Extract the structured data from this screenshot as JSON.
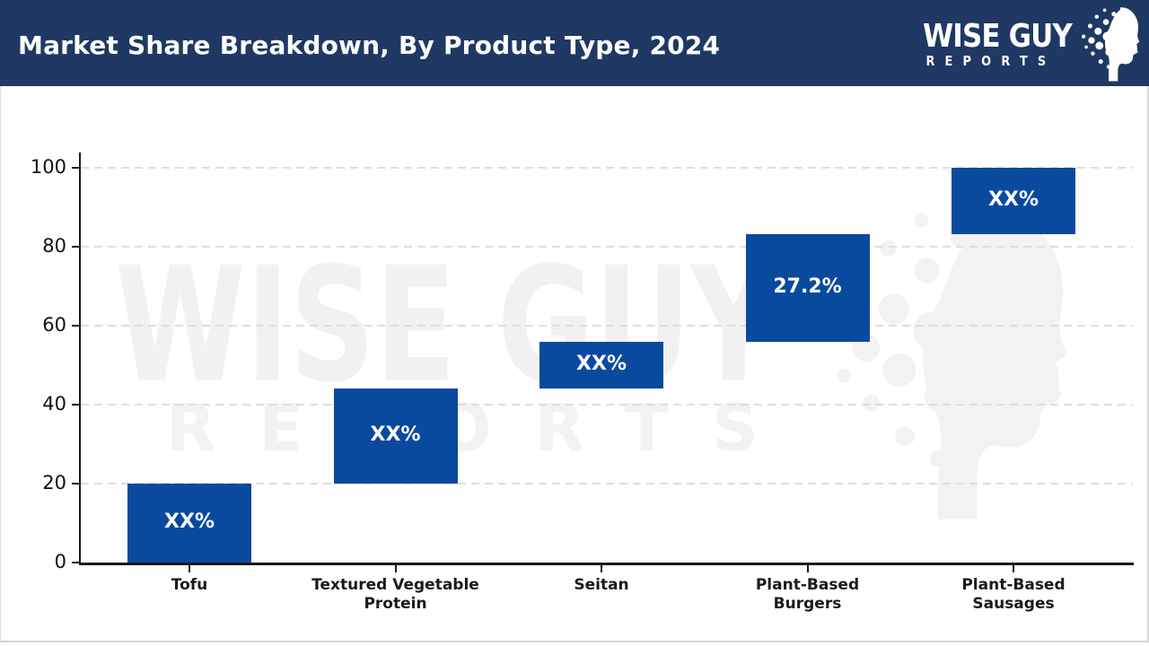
{
  "header": {
    "title": "Market Share Breakdown, By Product Type, 2024",
    "logo": {
      "line1": "WISE GUY",
      "line2": "REPORTS"
    }
  },
  "watermark": {
    "line1": "WISE GUY",
    "line2": "REPORTS"
  },
  "colors": {
    "header_bg": "#1f3864",
    "bar": "#0a4a9e",
    "bar_label": "#ffffff",
    "gridline": "#dedede",
    "axis": "#1a1a1a",
    "watermark": "#f1f1f4"
  },
  "chart_data": {
    "type": "bar",
    "subtype": "waterfall",
    "title": "Market Share Breakdown, By Product Type, 2024",
    "xlabel": "",
    "ylabel": "",
    "ylim": [
      0,
      105
    ],
    "yticks": [
      0,
      20,
      40,
      60,
      80,
      100
    ],
    "grid": "horizontal-dashed",
    "legend": "none",
    "categories": [
      "Tofu",
      "Textured Vegetable Protein",
      "Seitan",
      "Plant-Based Burgers",
      "Plant-Based Sausages"
    ],
    "category_label_lines": [
      [
        "Tofu"
      ],
      [
        "Textured Vegetable",
        "Protein"
      ],
      [
        "Seitan"
      ],
      [
        "Plant-Based",
        "Burgers"
      ],
      [
        "Plant-Based",
        "Sausages"
      ]
    ],
    "series": [
      {
        "name": "Market share (%)",
        "segments": [
          {
            "category": "Tofu",
            "start": 0,
            "end": 20,
            "label": "XX%"
          },
          {
            "category": "Textured Vegetable Protein",
            "start": 20,
            "end": 44,
            "label": "XX%"
          },
          {
            "category": "Seitan",
            "start": 44,
            "end": 56,
            "label": "XX%"
          },
          {
            "category": "Plant-Based Burgers",
            "start": 56,
            "end": 83.2,
            "label": "27.2%"
          },
          {
            "category": "Plant-Based Sausages",
            "start": 83.2,
            "end": 100,
            "label": "XX%"
          }
        ]
      }
    ]
  }
}
